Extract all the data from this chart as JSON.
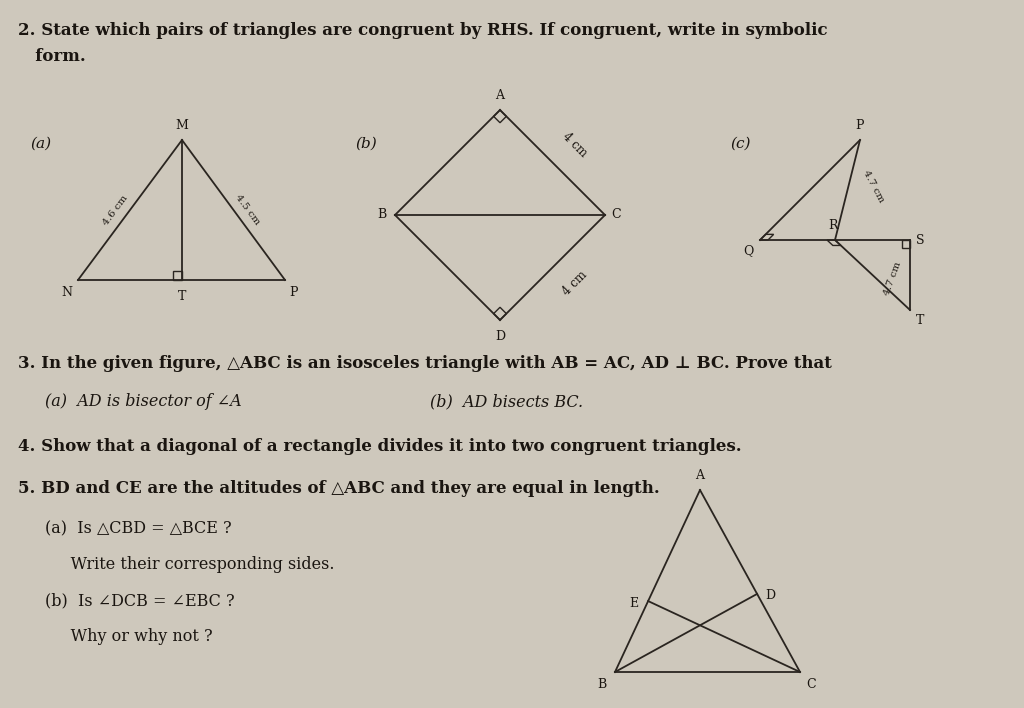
{
  "bg_color": "#cec8bc",
  "line_color": "#2a2520",
  "text_color": "#1a1510",
  "title1": "2. State which pairs of triangles are congruent by RHS. If congruent, write in symbolic",
  "title2": "   form.",
  "label_a": "(a)",
  "label_b": "(b)",
  "label_c": "(c)",
  "q3": "3. In the given figure, △ABC is an isosceles triangle with AB = AC, AD ⊥ BC. Prove that",
  "q3a": "(a)  AD is bisector of ∠A",
  "q3b": "(b)  AD bisects BC.",
  "q4": "4. Show that a diagonal of a rectangle divides it into two congruent triangles.",
  "q5": "5. BD and CE are the altitudes of △ABC and they are equal in length.",
  "q5a1": "(a)  Is △CBD = △BCE ?",
  "q5a2": "     Write their corresponding sides.",
  "q5b1": "(b)  Is ∠DCB = ∠EBC ?",
  "q5b2": "     Why or why not ?"
}
